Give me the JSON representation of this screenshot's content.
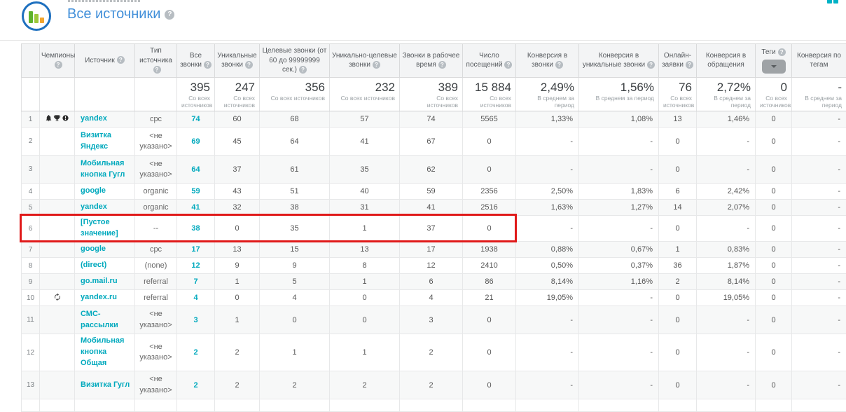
{
  "page": {
    "title": "Все источники",
    "accent_blue": "#418fd9",
    "accent_teal": "#00a9bd",
    "highlight_red": "#e01a1a",
    "logo_bar_colors": [
      "#5eb32c",
      "#9dc83b",
      "#f2a52e"
    ],
    "help_glyph": "?"
  },
  "table": {
    "columns": [
      {
        "id": "row-number",
        "label": "",
        "help": false
      },
      {
        "id": "champions",
        "label": "Чемпионы",
        "help": true
      },
      {
        "id": "source",
        "label": "Источник",
        "help": true
      },
      {
        "id": "source-type",
        "label": "Тип источника",
        "help": true
      },
      {
        "id": "all-calls",
        "label": "Все звонки",
        "help": true
      },
      {
        "id": "unique-calls",
        "label": "Уникальные звонки",
        "help": true
      },
      {
        "id": "target-calls",
        "label": "Целевые звонки (от 60 до 99999999 сек.)",
        "help": true
      },
      {
        "id": "unique-target-calls",
        "label": "Уникально-целевые звонки",
        "help": true
      },
      {
        "id": "working-hours-calls",
        "label": "Звонки в рабочее время",
        "help": true
      },
      {
        "id": "visits",
        "label": "Число посещений",
        "help": true
      },
      {
        "id": "conversion-calls",
        "label": "Конверсия в звонки",
        "help": true
      },
      {
        "id": "conversion-unique-calls",
        "label": "Конверсия в уникальные звонки",
        "help": true
      },
      {
        "id": "online-leads",
        "label": "Онлайн-заявки",
        "help": true
      },
      {
        "id": "conversion-contacts",
        "label": "Конверсия в обращения",
        "help": false
      },
      {
        "id": "tags",
        "label": "Теги",
        "help": true,
        "has_filter_button": true
      },
      {
        "id": "conversion-tags",
        "label": "Конверсия по тегам",
        "help": false
      }
    ],
    "summary": [
      {
        "value": "395",
        "note": "Со всех источников"
      },
      {
        "value": "247",
        "note": "Со всех источников"
      },
      {
        "value": "356",
        "note": "Со всех источников"
      },
      {
        "value": "232",
        "note": "Со всех источников"
      },
      {
        "value": "389",
        "note": "Со всех источников"
      },
      {
        "value": "15 884",
        "note": "Со всех источников"
      },
      {
        "value": "2,49%",
        "note": "В среднем за период"
      },
      {
        "value": "1,56%",
        "note": "В среднем за период"
      },
      {
        "value": "76",
        "note": "Со всех источников"
      },
      {
        "value": "2,72%",
        "note": "В среднем за период"
      },
      {
        "value": "0",
        "note": "Со всех источников"
      },
      {
        "value": "-",
        "note": "В среднем за период"
      }
    ],
    "rows": [
      {
        "num": "1",
        "champions": [
          "bell-icon",
          "trophy-icon",
          "medal-icon"
        ],
        "source": "yandex",
        "type": "cpc",
        "values": [
          "74",
          "60",
          "68",
          "57",
          "74",
          "5565",
          "1,33%",
          "1,08%",
          "13",
          "1,46%",
          "0",
          "-"
        ],
        "highlight": false
      },
      {
        "num": "2",
        "champions": [],
        "source": "Визитка Яндекс",
        "type": "<не указано>",
        "values": [
          "69",
          "45",
          "64",
          "41",
          "67",
          "0",
          "-",
          "-",
          "0",
          "-",
          "0",
          "-"
        ],
        "highlight": false
      },
      {
        "num": "3",
        "champions": [],
        "source": "Мобильная кнопка Гугл",
        "type": "<не указано>",
        "values": [
          "64",
          "37",
          "61",
          "35",
          "62",
          "0",
          "-",
          "-",
          "0",
          "-",
          "0",
          "-"
        ],
        "highlight": false
      },
      {
        "num": "4",
        "champions": [],
        "source": "google",
        "type": "organic",
        "values": [
          "59",
          "43",
          "51",
          "40",
          "59",
          "2356",
          "2,50%",
          "1,83%",
          "6",
          "2,42%",
          "0",
          "-"
        ],
        "highlight": false
      },
      {
        "num": "5",
        "champions": [],
        "source": "yandex",
        "type": "organic",
        "values": [
          "41",
          "32",
          "38",
          "31",
          "41",
          "2516",
          "1,63%",
          "1,27%",
          "14",
          "2,07%",
          "0",
          "-"
        ],
        "highlight": false
      },
      {
        "num": "6",
        "champions": [],
        "source": "[Пустое значение]",
        "type": "--",
        "values": [
          "38",
          "0",
          "35",
          "1",
          "37",
          "0",
          "-",
          "-",
          "0",
          "-",
          "0",
          "-"
        ],
        "highlight": true
      },
      {
        "num": "7",
        "champions": [],
        "source": "google",
        "type": "cpc",
        "values": [
          "17",
          "13",
          "15",
          "13",
          "17",
          "1938",
          "0,88%",
          "0,67%",
          "1",
          "0,83%",
          "0",
          "-"
        ],
        "highlight": false
      },
      {
        "num": "8",
        "champions": [],
        "source": "(direct)",
        "type": "(none)",
        "values": [
          "12",
          "9",
          "9",
          "8",
          "12",
          "2410",
          "0,50%",
          "0,37%",
          "36",
          "1,87%",
          "0",
          "-"
        ],
        "highlight": false
      },
      {
        "num": "9",
        "champions": [],
        "source": "go.mail.ru",
        "type": "referral",
        "values": [
          "7",
          "1",
          "5",
          "1",
          "6",
          "86",
          "8,14%",
          "1,16%",
          "2",
          "8,14%",
          "0",
          "-"
        ],
        "highlight": false
      },
      {
        "num": "10",
        "champions": [
          "refresh-icon"
        ],
        "source": "yandex.ru",
        "type": "referral",
        "values": [
          "4",
          "0",
          "4",
          "0",
          "4",
          "21",
          "19,05%",
          "-",
          "0",
          "19,05%",
          "0",
          "-"
        ],
        "highlight": false
      },
      {
        "num": "11",
        "champions": [],
        "source": "СМС-рассылки",
        "type": "<не указано>",
        "values": [
          "3",
          "1",
          "0",
          "0",
          "3",
          "0",
          "-",
          "-",
          "0",
          "-",
          "0",
          "-"
        ],
        "highlight": false
      },
      {
        "num": "12",
        "champions": [],
        "source": "Мобильная кнопка Общая",
        "type": "<не указано>",
        "values": [
          "2",
          "2",
          "1",
          "1",
          "2",
          "0",
          "-",
          "-",
          "0",
          "-",
          "0",
          "-"
        ],
        "highlight": false
      },
      {
        "num": "13",
        "champions": [],
        "source": "Визитка Гугл",
        "type": "<не указано>",
        "values": [
          "2",
          "2",
          "2",
          "2",
          "2",
          "0",
          "-",
          "-",
          "0",
          "-",
          "0",
          "-"
        ],
        "highlight": false
      }
    ]
  }
}
